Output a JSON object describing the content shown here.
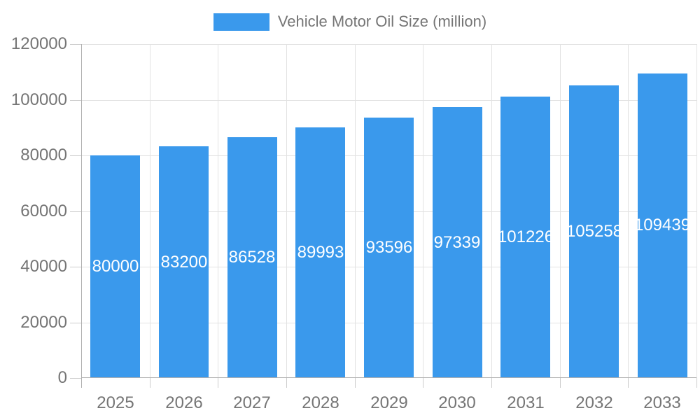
{
  "chart_data": {
    "type": "bar",
    "title": "Vehicle Motor Oil Size (million)",
    "categories": [
      "2025",
      "2026",
      "2027",
      "2028",
      "2029",
      "2030",
      "2031",
      "2032",
      "2033"
    ],
    "values": [
      80000,
      83200,
      86528,
      89993,
      93596,
      97339,
      101226,
      105258,
      109439
    ],
    "y_ticks": [
      0,
      20000,
      40000,
      60000,
      80000,
      100000,
      120000
    ],
    "ylim": [
      0,
      120000
    ],
    "xlabel": "",
    "ylabel": "",
    "grid": true,
    "legend_position": "top",
    "bar_label_position": "inside-center",
    "colors": {
      "bar": "#3a99ec",
      "grid_line": "#e2e2e2",
      "axis_line": "#b0b0b0",
      "tick_mark": "#cccccc",
      "tick_text": "#757575",
      "legend_text": "#757575",
      "bar_label_text": "#ffffff",
      "background": "#ffffff"
    }
  },
  "legend": {
    "items": [
      {
        "label": "Vehicle Motor Oil Size (million)",
        "swatch_color": "#3a99ec"
      }
    ]
  }
}
